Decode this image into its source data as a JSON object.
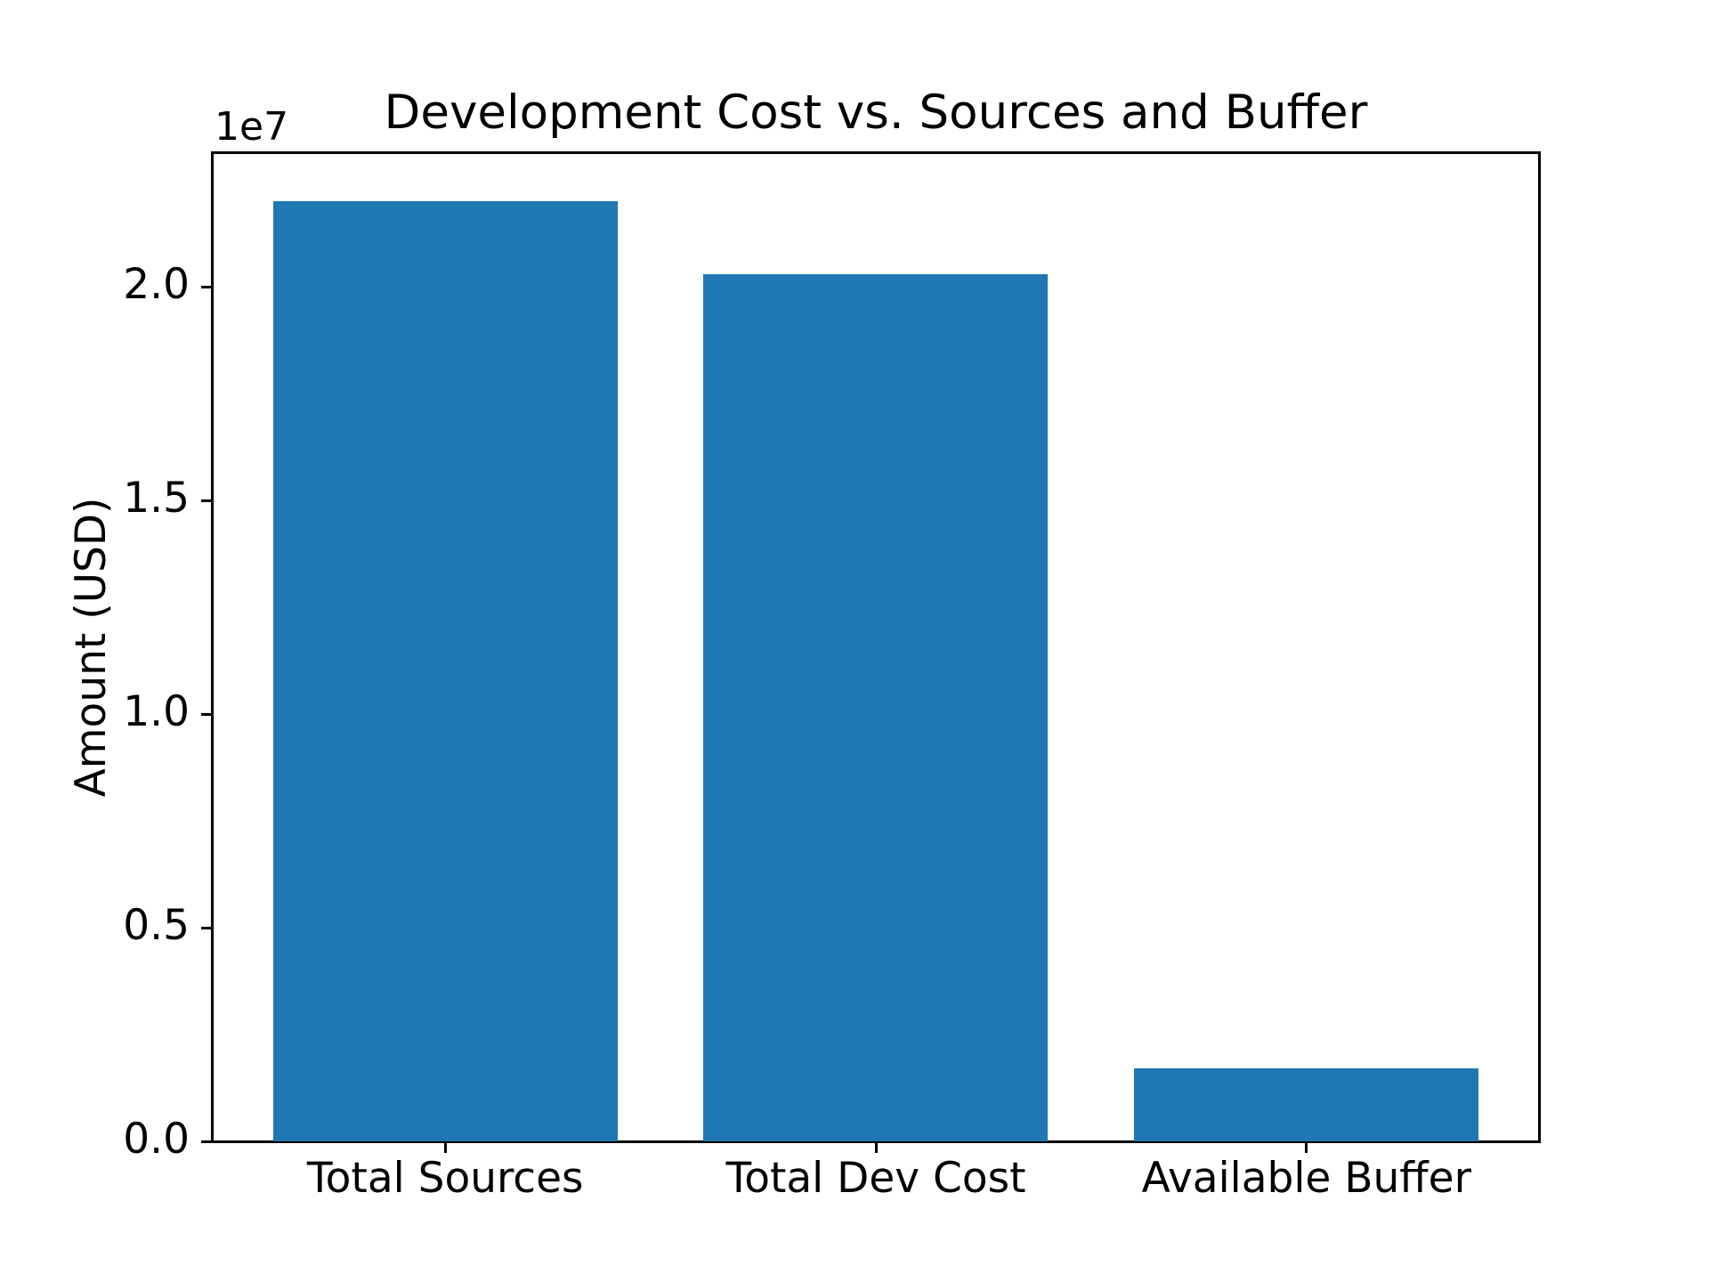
{
  "chart_data": {
    "type": "bar",
    "title": "Development Cost vs. Sources and Buffer",
    "ylabel": "Amount (USD)",
    "xlabel": "",
    "offset_label": "1e7",
    "categories": [
      "Total Sources",
      "Total Dev Cost",
      "Available Buffer"
    ],
    "values": [
      22000000,
      20300000,
      1700000
    ],
    "bar_color": "#1f77b4",
    "ylim": [
      0,
      23125000
    ],
    "yticks": [
      0,
      5000000,
      10000000,
      15000000,
      20000000
    ],
    "ytick_labels": [
      "0.0",
      "0.5",
      "1.0",
      "1.5",
      "2.0"
    ],
    "grid": false,
    "legend": null
  }
}
